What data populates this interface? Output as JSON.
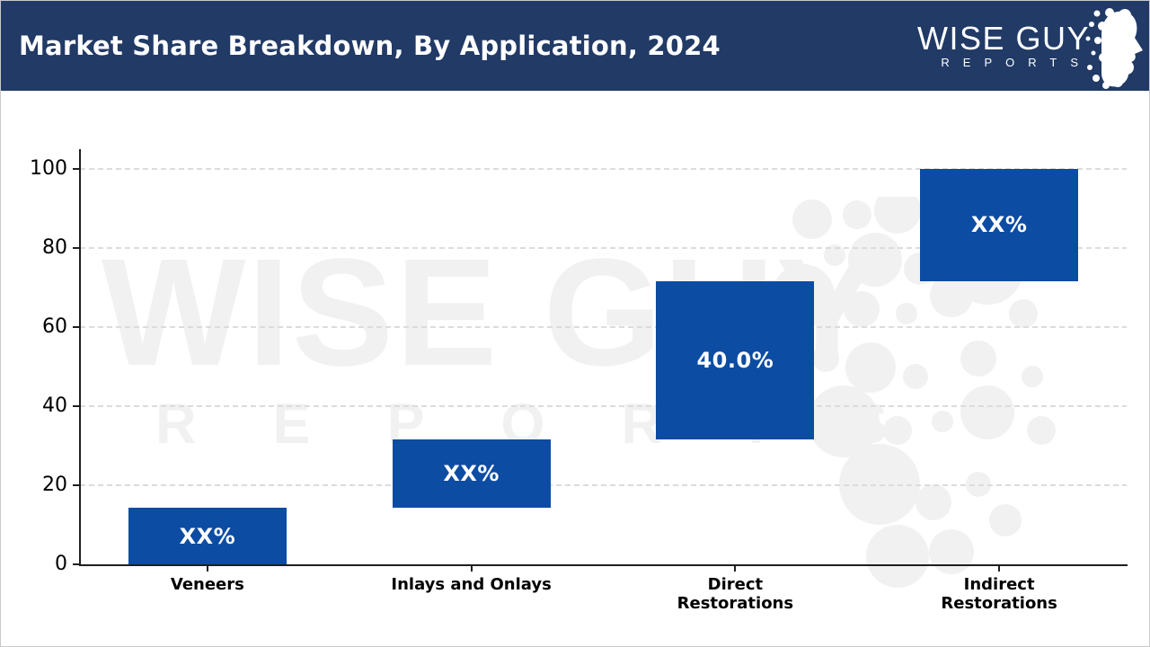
{
  "header": {
    "title": "Market Share Breakdown, By Application, 2024",
    "logo": {
      "wordmark": "WISE GUY",
      "subtext": "REPORTS"
    }
  },
  "watermark": {
    "wordmark": "WISE GUY",
    "subtext": "REPORTS"
  },
  "colors": {
    "header_bg": "#213A66",
    "bar_fill": "#0C4CA3",
    "title_text": "#FFFFFF",
    "axis": "#1F1F1F",
    "gridline": "#DCDCDC",
    "tick_label": "#000000",
    "category_label": "#000000",
    "bar_value_label": "#FFFFFF",
    "watermark": "#F1F1F1",
    "page_border": "#C9C9C9"
  },
  "chart_data": {
    "type": "bar",
    "subtype": "floating-waterfall-percentage",
    "title": "Market Share Breakdown, By Application, 2024",
    "categories": [
      "Veneers",
      "Inlays and Onlays",
      "Direct Restorations",
      "Indirect Restorations"
    ],
    "category_lines": [
      [
        "Veneers"
      ],
      [
        "Inlays and Onlays"
      ],
      [
        "Direct",
        "Restorations"
      ],
      [
        "Indirect",
        "Restorations"
      ]
    ],
    "series": [
      {
        "name": "Market share (%)",
        "segments": [
          {
            "category": "Veneers",
            "start": 0,
            "end": 14.3,
            "value_label": "XX%"
          },
          {
            "category": "Inlays and Onlays",
            "start": 14.3,
            "end": 31.6,
            "value_label": "XX%"
          },
          {
            "category": "Direct Restorations",
            "start": 31.6,
            "end": 71.6,
            "value_label": "40.0%"
          },
          {
            "category": "Indirect Restorations",
            "start": 71.6,
            "end": 100,
            "value_label": "XX%"
          }
        ]
      }
    ],
    "xlabel": "",
    "ylabel": "",
    "ylim": [
      0,
      100
    ],
    "yticks": [
      0,
      20,
      40,
      60,
      80,
      100
    ],
    "grid": {
      "horizontal": true,
      "style": "dashed"
    },
    "legend": "none"
  }
}
